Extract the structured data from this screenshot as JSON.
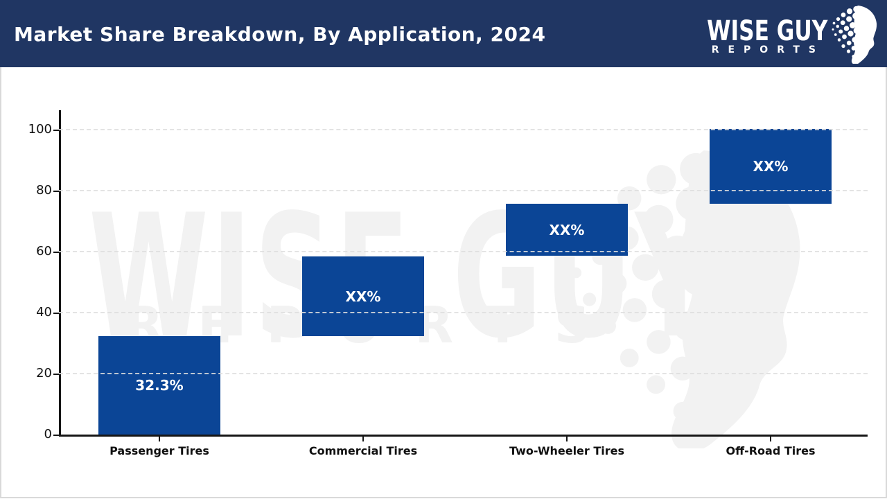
{
  "header": {
    "title": "Market Share Breakdown, By Application, 2024",
    "background_color": "#203663",
    "logo": {
      "line1": "WISE GUY",
      "line2": "REPORTS",
      "face_icon": "dotted-face-profile-icon"
    }
  },
  "watermark": {
    "line1": "WISE GUY",
    "line2": "REPORTS",
    "face_icon": "dotted-face-profile-icon",
    "color": "#f2f2f2"
  },
  "chart_data": {
    "type": "bar",
    "subtype": "waterfall",
    "title": "Market Share Breakdown, By Application, 2024",
    "xlabel": "",
    "ylabel": "",
    "legend": "none",
    "grid": "horizontal-dashed",
    "ylim": [
      0,
      105
    ],
    "y_ticks": [
      0,
      20,
      40,
      60,
      80,
      100
    ],
    "categories": [
      "Passenger Tires",
      "Commercial Tires",
      "Two-Wheeler Tires",
      "Off-Road Tires"
    ],
    "segments": [
      {
        "category": "Passenger Tires",
        "start": 0,
        "end": 32.3,
        "label": "32.3%"
      },
      {
        "category": "Commercial Tires",
        "start": 32.3,
        "end": 58.3,
        "label": "XX%"
      },
      {
        "category": "Two-Wheeler Tires",
        "start": 58.6,
        "end": 75.6,
        "label": "XX%"
      },
      {
        "category": "Off-Road Tires",
        "start": 75.6,
        "end": 100.3,
        "label": "XX%"
      }
    ],
    "bar_color": "#0b4596",
    "bar_label_color": "#ffffff",
    "axis_color": "#161616",
    "gridline_color": "#dedede"
  }
}
